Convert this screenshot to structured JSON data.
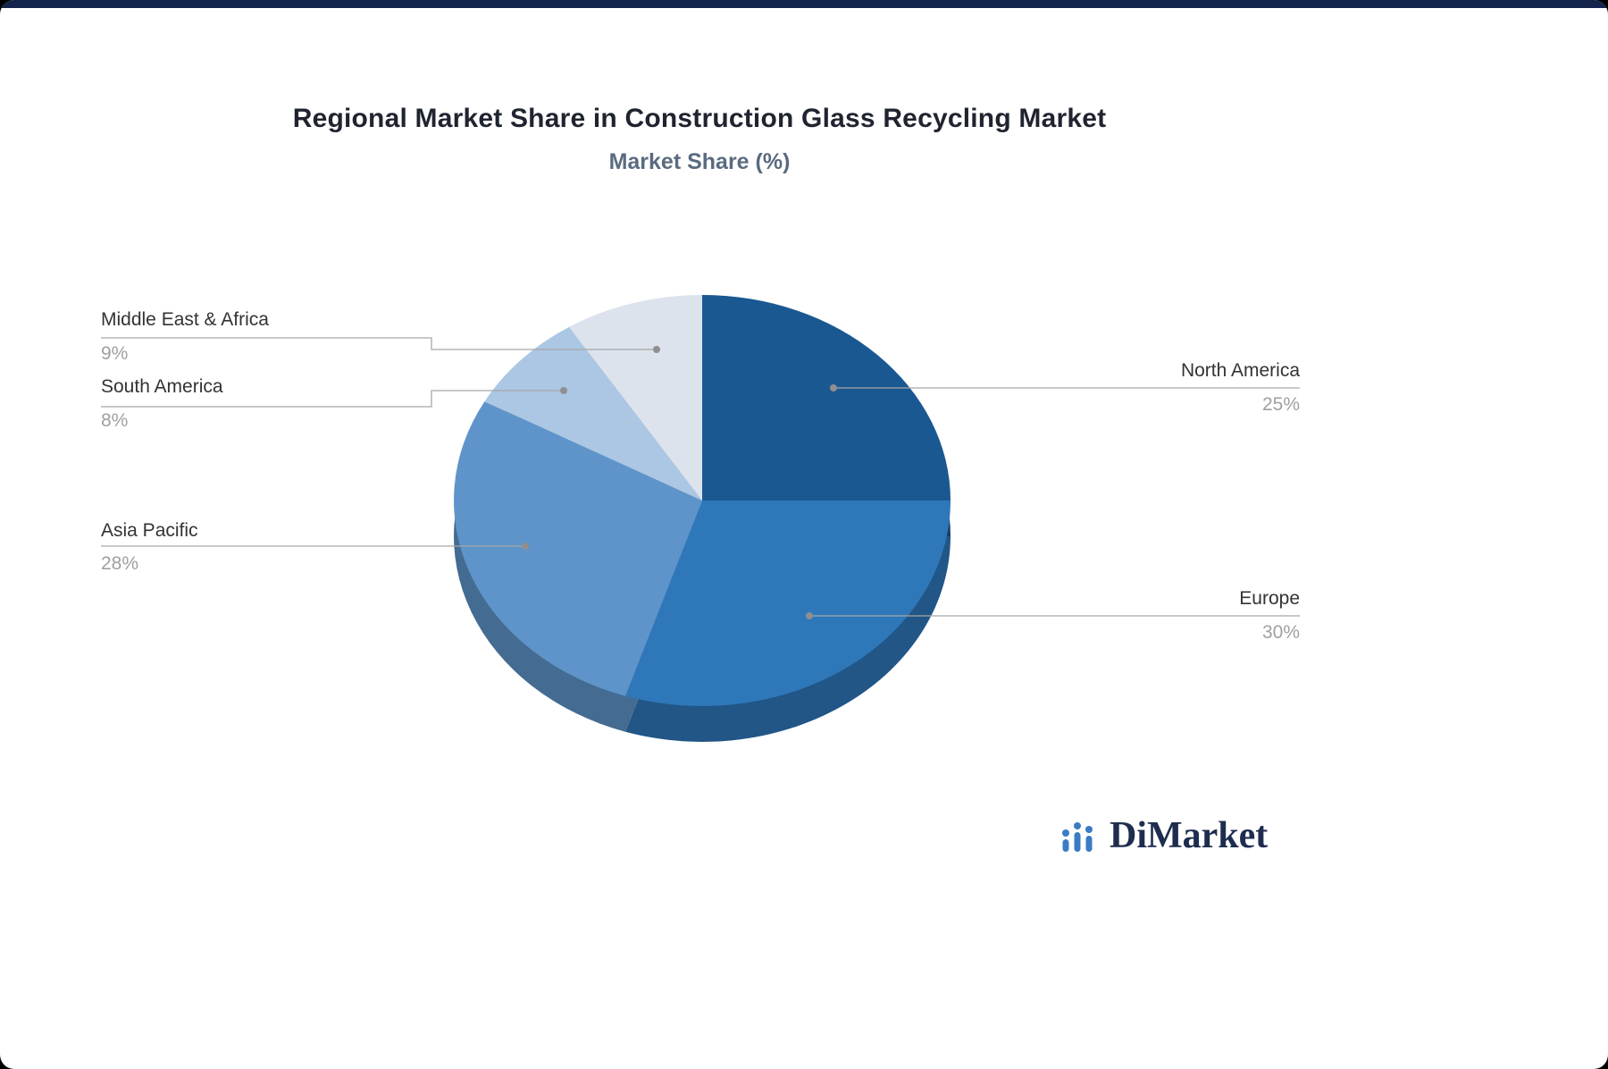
{
  "page": {
    "top_bar_color": "#14254d",
    "background_color": "#ffffff"
  },
  "header": {
    "title": "Regional Market Share in Construction Glass Recycling Market",
    "subtitle": "Market Share (%)"
  },
  "chart_data": {
    "type": "pie",
    "style": "3d",
    "title": "Regional Market Share in Construction Glass Recycling Market",
    "subtitle": "Market Share (%)",
    "unit": "%",
    "direction": "clockwise",
    "start_angle_deg": 0,
    "legend_position": "callout-labels",
    "slices": [
      {
        "label": "North America",
        "value": 25,
        "display": "25%",
        "color": "#1a5892",
        "callout_side": "right"
      },
      {
        "label": "Europe",
        "value": 30,
        "display": "30%",
        "color": "#2e78ba",
        "callout_side": "right"
      },
      {
        "label": "Asia Pacific",
        "value": 28,
        "display": "28%",
        "color": "#5e94c9",
        "callout_side": "left"
      },
      {
        "label": "South America",
        "value": 8,
        "display": "8%",
        "color": "#abc7e4",
        "callout_side": "left"
      },
      {
        "label": "Middle East & Africa",
        "value": 9,
        "display": "9%",
        "color": "#dce3ed",
        "callout_side": "left"
      }
    ]
  },
  "brand": {
    "name": "DiMarket",
    "icon_color": "#3a7cc4",
    "text_color": "#1e2d4f"
  }
}
